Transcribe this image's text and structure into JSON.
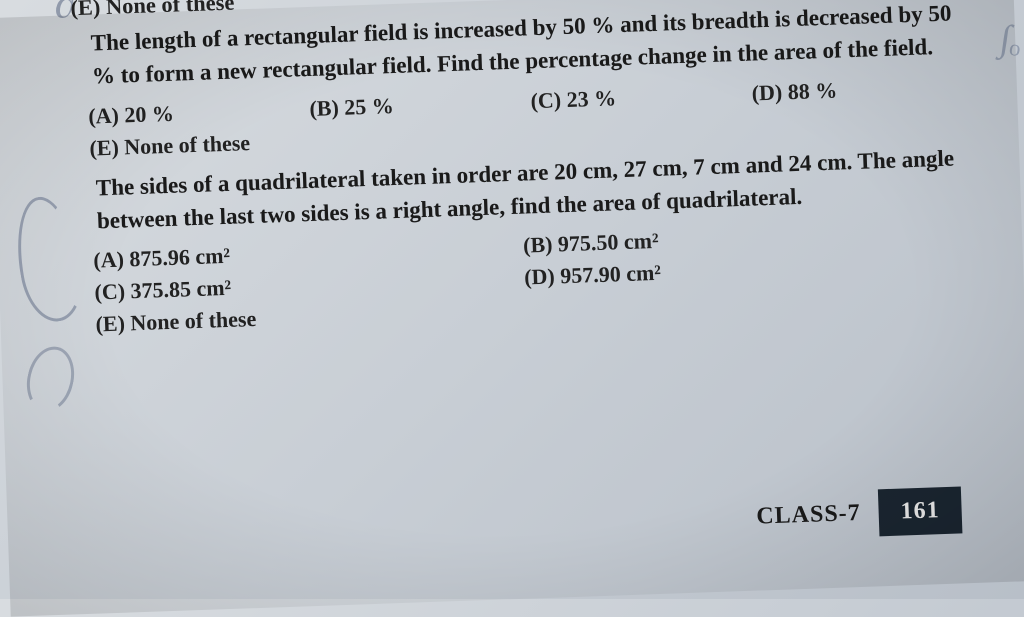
{
  "prev": {
    "optE": "(E)  None of these"
  },
  "q1": {
    "text": "The length of a rectangular field is increased by 50 % and its breadth is decreased by 50 % to form a new rectangular field. Find the percentage change in the area of the field.",
    "optA": "(A)  20 %",
    "optB": "(B)  25 %",
    "optC": "(C)  23 %",
    "optD": "(D)  88 %",
    "optE": "(E)  None of these"
  },
  "q2": {
    "text": "The sides of a quadrilateral taken in order are 20 cm, 27 cm, 7 cm and 24 cm. The angle between the last two sides is a right angle, find the area of quadrilateral.",
    "optA": "(A)  875.96 cm²",
    "optB": "(B)  975.50 cm²",
    "optC": "(C)  375.85 cm²",
    "optD": "(D)  957.90 cm²",
    "optE": "(E)  None of these"
  },
  "footer": {
    "label": "CLASS-7",
    "page": "161"
  },
  "doodle": {
    "symbol": "∫ₒ",
    "hook": "∂"
  }
}
